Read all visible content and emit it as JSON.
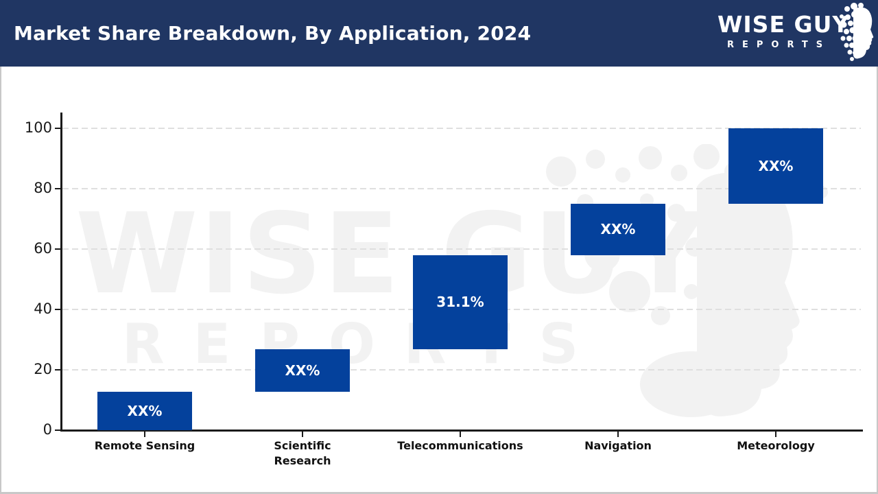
{
  "header": {
    "title": "Market Share Breakdown, By Application, 2024",
    "logo": {
      "brand": "WISE GUY",
      "brand_sub": "REPORTS"
    }
  },
  "watermark": {
    "brand": "WISE GUY",
    "brand_sub": "REPORTS"
  },
  "colors": {
    "header-bg": "#203663",
    "bar": "#04419c",
    "grid": "#dfdfdf",
    "axis": "#1a1a1a",
    "text": "#111111",
    "watermark": "#f2f2f2",
    "bar-label": "#ffffff",
    "card-border": "#c8c8c8"
  },
  "chart_data": {
    "type": "bar",
    "variant": "waterfall",
    "title": "Market Share Breakdown, By Application, 2024",
    "categories": [
      "Remote Sensing",
      "Scientific Research",
      "Telecommunications",
      "Navigation",
      "Meteorology"
    ],
    "categories_display": [
      "Remote Sensing",
      "Scientific\nResearch",
      "Telecommunications",
      "Navigation",
      "Meteorology"
    ],
    "segments": [
      {
        "category": "Remote Sensing",
        "start": 0,
        "end": 12.7,
        "label": "XX%"
      },
      {
        "category": "Scientific Research",
        "start": 12.7,
        "end": 26.9,
        "label": "XX%"
      },
      {
        "category": "Telecommunications",
        "start": 26.9,
        "end": 58.0,
        "label": "31.1%"
      },
      {
        "category": "Navigation",
        "start": 58.0,
        "end": 75.0,
        "label": "XX%"
      },
      {
        "category": "Meteorology",
        "start": 75.0,
        "end": 100.0,
        "label": "XX%"
      }
    ],
    "xlabel": "",
    "ylabel": "",
    "ylim": [
      0,
      105
    ],
    "yticks": [
      0,
      20,
      40,
      60,
      80,
      100
    ],
    "grid": {
      "horizontal": true,
      "style": "dashed"
    },
    "legend": "none"
  }
}
